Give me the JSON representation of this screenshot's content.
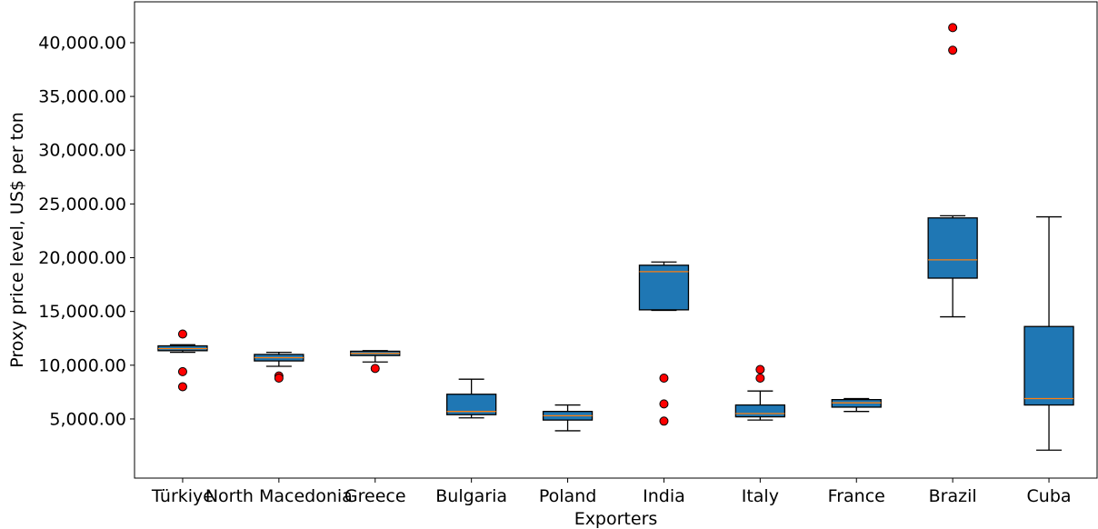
{
  "chart_data": {
    "type": "box",
    "xlabel": "Exporters",
    "ylabel": "Proxy price level, US$ per ton",
    "ylim": [
      -500,
      43800
    ],
    "yticks": [
      5000,
      10000,
      15000,
      20000,
      25000,
      30000,
      35000,
      40000
    ],
    "ytick_labels": [
      "5,000.00",
      "10,000.00",
      "15,000.00",
      "20,000.00",
      "25,000.00",
      "30,000.00",
      "35,000.00",
      "40,000.00"
    ],
    "grid": false,
    "categories": [
      "Türkiye",
      "North Macedonia",
      "Greece",
      "Bulgaria",
      "Poland",
      "India",
      "Italy",
      "France",
      "Brazil",
      "Cuba"
    ],
    "boxes": [
      {
        "whislo": 11200,
        "q1": 11350,
        "med": 11550,
        "q3": 11800,
        "whishi": 11900,
        "fliers": [
          12900,
          9400,
          8000
        ]
      },
      {
        "whislo": 9900,
        "q1": 10400,
        "med": 10700,
        "q3": 11000,
        "whishi": 11200,
        "fliers": [
          9000,
          8800
        ]
      },
      {
        "whislo": 10300,
        "q1": 10900,
        "med": 11100,
        "q3": 11300,
        "whishi": 11350,
        "fliers": [
          9700
        ]
      },
      {
        "whislo": 5100,
        "q1": 5400,
        "med": 5700,
        "q3": 7300,
        "whishi": 8700,
        "fliers": []
      },
      {
        "whislo": 3900,
        "q1": 4900,
        "med": 5300,
        "q3": 5700,
        "whishi": 6300,
        "fliers": []
      },
      {
        "whislo": 15100,
        "q1": 15150,
        "med": 18700,
        "q3": 19300,
        "whishi": 19600,
        "fliers": [
          8800,
          6400,
          4800
        ]
      },
      {
        "whislo": 4900,
        "q1": 5200,
        "med": 5500,
        "q3": 6300,
        "whishi": 7600,
        "fliers": [
          9600,
          8800
        ]
      },
      {
        "whislo": 5700,
        "q1": 6100,
        "med": 6500,
        "q3": 6800,
        "whishi": 6900,
        "fliers": []
      },
      {
        "whislo": 14500,
        "q1": 18100,
        "med": 19800,
        "q3": 23700,
        "whishi": 23900,
        "fliers": [
          41400,
          39300
        ]
      },
      {
        "whislo": 2100,
        "q1": 6300,
        "med": 6900,
        "q3": 13600,
        "whishi": 23800,
        "fliers": []
      }
    ],
    "colors": {
      "box_fill": "#1f77b4",
      "median": "#ff7f0e",
      "flier": "#ff0000"
    }
  }
}
